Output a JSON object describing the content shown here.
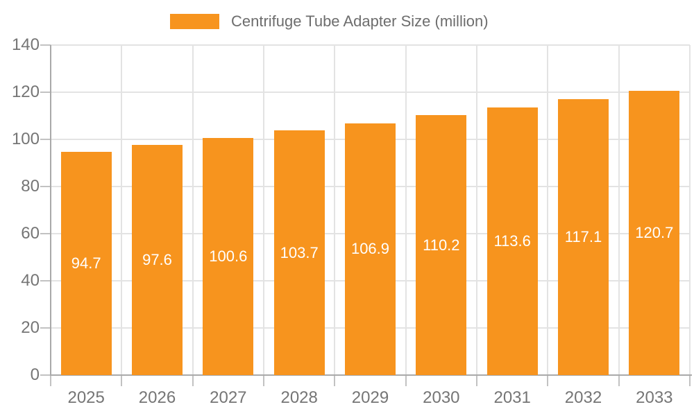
{
  "chart_data": {
    "type": "bar",
    "legend_label": "Centrifuge Tube Adapter Size (million)",
    "legend_position": "top",
    "categories": [
      "2025",
      "2026",
      "2027",
      "2028",
      "2029",
      "2030",
      "2031",
      "2032",
      "2033"
    ],
    "values": [
      94.7,
      97.6,
      100.6,
      103.7,
      106.9,
      110.2,
      113.6,
      117.1,
      120.7
    ],
    "xlabel": "",
    "ylabel": "",
    "ylim": [
      0,
      140
    ],
    "yticks": [
      0,
      20,
      40,
      60,
      80,
      100,
      120,
      140
    ],
    "grid": true,
    "bar_label_decimals": 1,
    "colors": {
      "bar": "#f7941e",
      "bar_label": "#ffffff",
      "axis_line": "#a9a9a9",
      "grid_line": "#e3e3e3",
      "tick_mark": "#c2c2c2",
      "tick_label": "#757575",
      "legend_text": "#6d6d6d"
    }
  }
}
